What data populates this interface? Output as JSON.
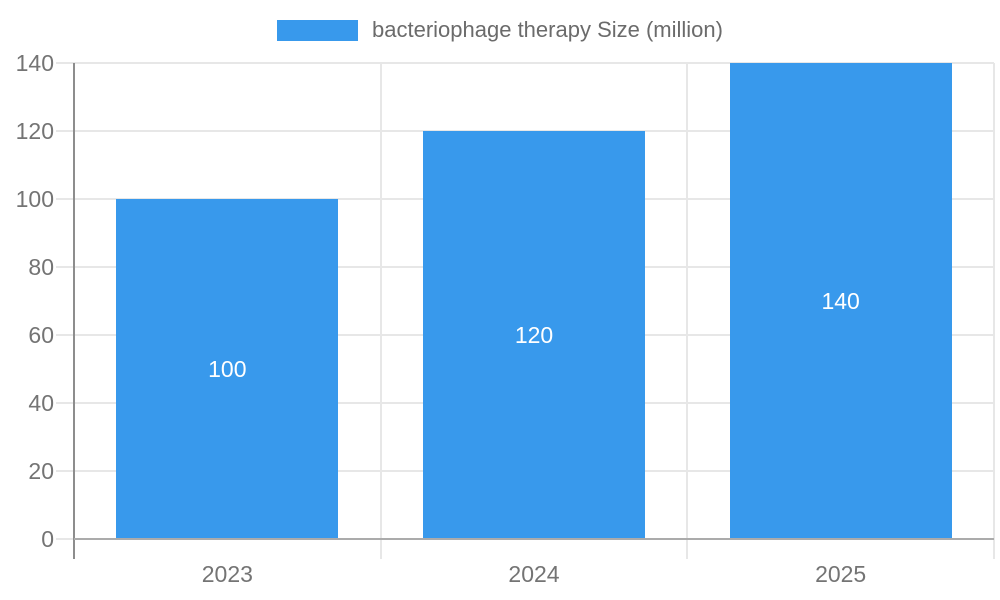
{
  "legend": {
    "label": "bacteriophage therapy Size (million)"
  },
  "chart_data": {
    "type": "bar",
    "title": "",
    "xlabel": "",
    "ylabel": "",
    "categories": [
      "2023",
      "2024",
      "2025"
    ],
    "series": [
      {
        "name": "bacteriophage therapy Size (million)",
        "values": [
          100,
          120,
          140
        ]
      }
    ],
    "data_labels_shown": true,
    "ylim": [
      0,
      140
    ],
    "yticks": [
      0,
      20,
      40,
      60,
      80,
      100,
      120,
      140
    ],
    "grid": true,
    "legend_position": "top",
    "colors": {
      "bar": "#3899ec",
      "data_label": "#ffffff",
      "axis_text": "#747474",
      "legend_text": "#6b6b6b",
      "gridline": "#e7e7e7",
      "y_axis_line": "#8d8d8d",
      "x_axis_line": "#ababab",
      "background": "#ffffff"
    }
  }
}
